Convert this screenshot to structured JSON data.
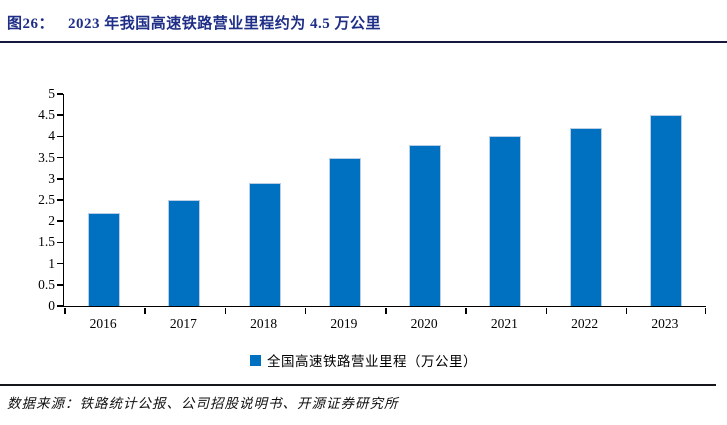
{
  "title": {
    "tag": "图26：",
    "text": "2023 年我国高速铁路营业里程约为 4.5 万公里"
  },
  "chart_data": {
    "type": "bar",
    "categories": [
      "2016",
      "2017",
      "2018",
      "2019",
      "2020",
      "2021",
      "2022",
      "2023"
    ],
    "values": [
      2.2,
      2.5,
      2.9,
      3.5,
      3.8,
      4.0,
      4.2,
      4.5
    ],
    "series_name": "全国高速铁路营业里程（万公里）",
    "title": "2023 年我国高速铁路营业里程约为 4.5 万公里",
    "xlabel": "",
    "ylabel": "",
    "ylim": [
      0,
      5
    ],
    "ytick_step": 0.5,
    "grid": false,
    "legend_position": "bottom",
    "bar_color": "#0070C0",
    "bar_border_color": "#B9CDE5"
  },
  "legend": {
    "label": "全国高速铁路营业里程（万公里）",
    "swatch_color": "#0070C0"
  },
  "footer": {
    "source": "数据来源：铁路统计公报、公司招股说明书、开源证券研究所"
  },
  "colors": {
    "title_text": "#1F2F87",
    "axis": "#000000",
    "rule": "#15173d"
  }
}
